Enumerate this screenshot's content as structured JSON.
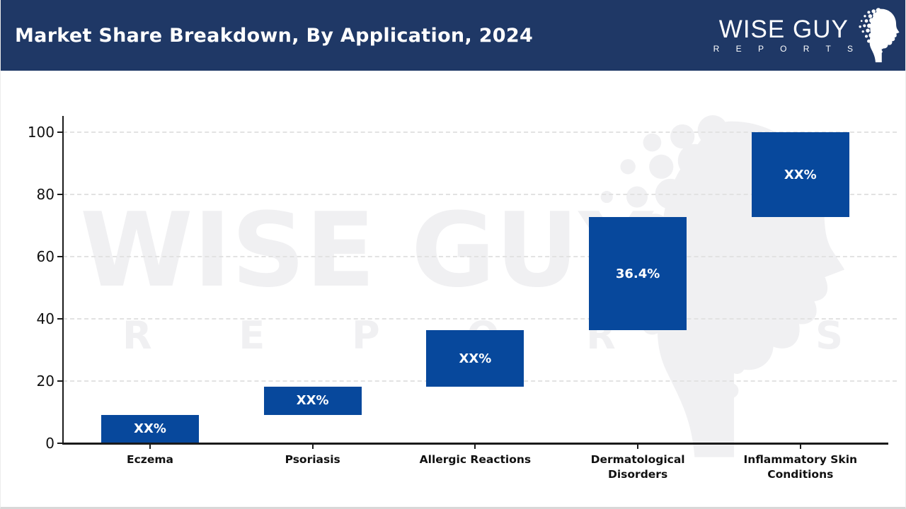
{
  "header": {
    "title": "Market Share Breakdown, By Application, 2024",
    "logo": {
      "name": "WISE GUY",
      "subtitle": "R E P O R T S"
    }
  },
  "watermark": {
    "line1": "WISE GUY",
    "line2": "R E P O R T S"
  },
  "chart_data": {
    "type": "bar",
    "subtype": "waterfall",
    "title": "Market Share Breakdown, By Application, 2024",
    "categories": [
      "Eczema",
      "Psoriasis",
      "Allergic Reactions",
      "Dermatological\nDisorders",
      "Inflammatory Skin\nConditions"
    ],
    "segments": [
      {
        "category": "Eczema",
        "start": 0,
        "end": 9.1,
        "label": "XX%"
      },
      {
        "category": "Psoriasis",
        "start": 9.1,
        "end": 18.2,
        "label": "XX%"
      },
      {
        "category": "Allergic Reactions",
        "start": 18.2,
        "end": 36.3,
        "label": "XX%"
      },
      {
        "category": "Dermatological Disorders",
        "start": 36.3,
        "end": 72.7,
        "label": "36.4%"
      },
      {
        "category": "Inflammatory Skin Conditions",
        "start": 72.7,
        "end": 100,
        "label": "XX%"
      }
    ],
    "yticks": [
      0,
      20,
      40,
      60,
      80,
      100
    ],
    "ylim": [
      0,
      105
    ],
    "xlabel": "",
    "ylabel": "",
    "grid": "horizontal-dashed",
    "legend": "none",
    "bar_color": "#07489c"
  },
  "colors": {
    "header_bg": "#1f3866",
    "bar": "#07489c",
    "axis": "#1a1a1a",
    "grid": "#e2e2e2",
    "watermark": "#f0f0f2",
    "page_bg": "#ffffff"
  }
}
